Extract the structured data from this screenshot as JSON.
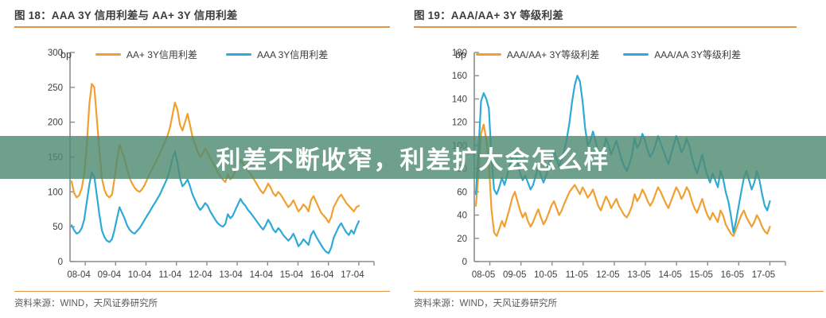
{
  "page": {
    "banner_text": "利差不断收窄，利差扩大会怎么样",
    "banner_color": "#4f8b73",
    "accent_rule_color": "#e2954a"
  },
  "figures": [
    {
      "title": "图 18：AAA 3Y 信用利差与 AA+ 3Y 信用利差",
      "unit_label": "bp",
      "legend": [
        {
          "label": "AA+ 3Y信用利差",
          "color": "#f0a030"
        },
        {
          "label": "AAA 3Y信用利差",
          "color": "#2fa9d6"
        }
      ],
      "source": "资料来源：WIND，天风证券研究所"
    },
    {
      "title": "图 19：AAA/AA+ 3Y 等级利差",
      "unit_label": "bp",
      "legend": [
        {
          "label": "AAA/AA+ 3Y等级利差",
          "color": "#f0a030"
        },
        {
          "label": "AAA/AA 3Y等级利差",
          "color": "#2fa9d6"
        }
      ],
      "source": "资料来源：WIND，天风证券研究所"
    }
  ],
  "chart_data": [
    {
      "type": "line",
      "title": "AAA 3Y 信用利差与 AA+ 3Y 信用利差",
      "ylabel": "bp",
      "ylim": [
        0,
        300
      ],
      "yticks": [
        0,
        50,
        100,
        150,
        200,
        250,
        300
      ],
      "x_labels": [
        "08-04",
        "09-04",
        "10-04",
        "11-04",
        "12-04",
        "13-04",
        "14-04",
        "15-04",
        "16-04",
        "17-04"
      ],
      "x_start": "2008-04",
      "x_end": "2017-10",
      "grid": false,
      "legend_position": "top",
      "series": [
        {
          "name": "AA+ 3Y信用利差",
          "color": "#f0a030",
          "values": [
            115,
            98,
            92,
            95,
            105,
            125,
            165,
            225,
            255,
            250,
            205,
            160,
            120,
            103,
            95,
            92,
            96,
            118,
            145,
            168,
            158,
            148,
            132,
            120,
            112,
            106,
            102,
            100,
            104,
            110,
            118,
            126,
            133,
            140,
            148,
            155,
            163,
            172,
            180,
            192,
            210,
            228,
            218,
            196,
            188,
            200,
            212,
            196,
            178,
            168,
            158,
            150,
            155,
            162,
            156,
            148,
            142,
            135,
            128,
            122,
            118,
            114,
            125,
            118,
            122,
            130,
            138,
            146,
            140,
            136,
            130,
            126,
            120,
            114,
            108,
            102,
            98,
            104,
            112,
            106,
            98,
            94,
            100,
            96,
            90,
            84,
            78,
            82,
            88,
            80,
            72,
            76,
            82,
            78,
            72,
            88,
            94,
            86,
            78,
            70,
            66,
            62,
            56,
            64,
            78,
            85,
            92,
            96,
            90,
            84,
            80,
            76,
            72,
            78,
            80
          ]
        },
        {
          "name": "AAA 3Y信用利差",
          "color": "#2fa9d6",
          "values": [
            52,
            45,
            40,
            42,
            48,
            60,
            85,
            110,
            128,
            122,
            95,
            68,
            45,
            35,
            30,
            28,
            32,
            45,
            62,
            78,
            70,
            62,
            52,
            46,
            42,
            40,
            44,
            48,
            54,
            60,
            66,
            72,
            78,
            84,
            90,
            96,
            104,
            112,
            120,
            132,
            148,
            158,
            142,
            120,
            108,
            112,
            118,
            108,
            96,
            88,
            80,
            74,
            78,
            84,
            80,
            72,
            66,
            60,
            55,
            52,
            50,
            54,
            68,
            62,
            66,
            74,
            82,
            90,
            84,
            80,
            74,
            70,
            65,
            60,
            55,
            50,
            46,
            52,
            60,
            54,
            46,
            42,
            48,
            44,
            38,
            34,
            30,
            34,
            40,
            32,
            22,
            26,
            32,
            28,
            24,
            38,
            44,
            36,
            30,
            24,
            18,
            14,
            12,
            20,
            34,
            42,
            50,
            55,
            48,
            42,
            38,
            45,
            40,
            50,
            58
          ]
        }
      ]
    },
    {
      "type": "line",
      "title": "AAA/AA+ 3Y 等级利差",
      "ylabel": "bp",
      "ylim": [
        0,
        180
      ],
      "yticks": [
        0,
        20,
        40,
        60,
        80,
        100,
        120,
        140,
        160,
        180
      ],
      "x_labels": [
        "08-05",
        "09-05",
        "10-05",
        "11-05",
        "12-05",
        "13-05",
        "14-05",
        "15-05",
        "16-05",
        "17-05"
      ],
      "x_start": "2008-05",
      "x_end": "2017-10",
      "grid": false,
      "legend_position": "top",
      "series": [
        {
          "name": "AAA/AA+ 3Y等级利差",
          "color": "#f0a030",
          "values": [
            48,
            75,
            110,
            118,
            105,
            85,
            45,
            25,
            22,
            28,
            35,
            30,
            38,
            46,
            55,
            60,
            52,
            44,
            38,
            42,
            35,
            30,
            34,
            40,
            45,
            38,
            32,
            36,
            42,
            48,
            52,
            46,
            40,
            44,
            50,
            55,
            60,
            63,
            66,
            62,
            58,
            64,
            60,
            55,
            58,
            62,
            55,
            48,
            44,
            50,
            56,
            52,
            46,
            50,
            54,
            48,
            44,
            40,
            38,
            42,
            48,
            58,
            52,
            56,
            62,
            58,
            52,
            48,
            52,
            58,
            64,
            60,
            55,
            50,
            46,
            52,
            58,
            64,
            60,
            54,
            58,
            64,
            60,
            52,
            46,
            42,
            48,
            54,
            46,
            40,
            36,
            42,
            38,
            34,
            44,
            40,
            32,
            28,
            24,
            22,
            28,
            34,
            40,
            44,
            38,
            34,
            30,
            34,
            40,
            36,
            30,
            26,
            24,
            30
          ]
        },
        {
          "name": "AAA/AA 3Y等级利差",
          "color": "#2fa9d6",
          "values": [
            58,
            95,
            138,
            145,
            140,
            132,
            90,
            62,
            58,
            64,
            72,
            66,
            74,
            82,
            90,
            96,
            86,
            76,
            70,
            74,
            68,
            62,
            66,
            74,
            82,
            74,
            68,
            74,
            82,
            90,
            96,
            88,
            82,
            88,
            96,
            106,
            120,
            138,
            152,
            160,
            155,
            138,
            115,
            100,
            104,
            112,
            104,
            94,
            88,
            96,
            106,
            100,
            92,
            98,
            104,
            96,
            88,
            82,
            78,
            84,
            92,
            106,
            98,
            102,
            110,
            104,
            96,
            90,
            94,
            100,
            108,
            102,
            96,
            90,
            84,
            92,
            100,
            108,
            102,
            94,
            98,
            106,
            100,
            90,
            82,
            76,
            84,
            92,
            82,
            74,
            68,
            76,
            70,
            64,
            78,
            72,
            60,
            52,
            40,
            25,
            35,
            48,
            60,
            72,
            78,
            70,
            62,
            68,
            78,
            70,
            58,
            48,
            44,
            52
          ]
        }
      ]
    }
  ]
}
